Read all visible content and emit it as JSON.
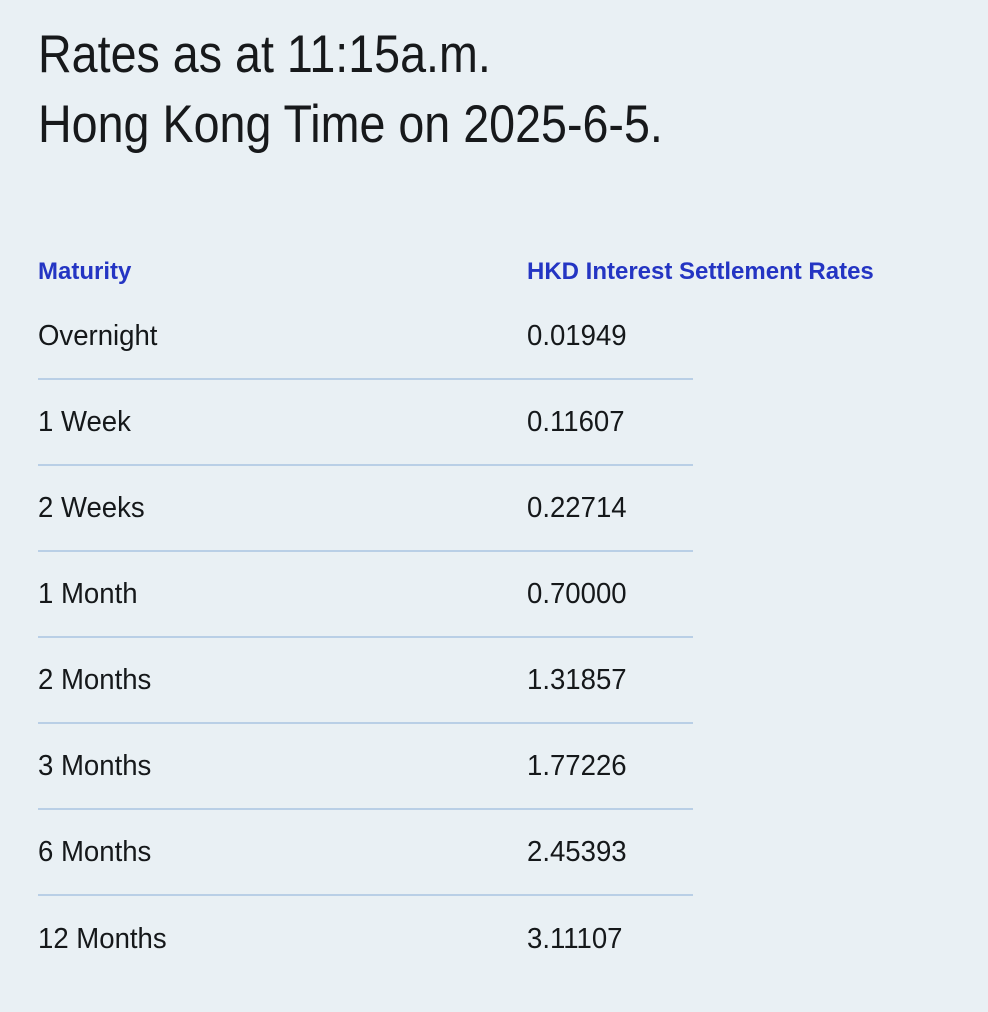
{
  "title": {
    "line1": "Rates as at 11:15a.m.",
    "line2": "Hong Kong Time on 2025-6-5."
  },
  "table": {
    "headers": {
      "maturity": "Maturity",
      "rate": "HKD Interest Settlement Rates"
    },
    "rows": [
      {
        "maturity": "Overnight",
        "rate": "0.01949"
      },
      {
        "maturity": "1 Week",
        "rate": "0.11607"
      },
      {
        "maturity": "2 Weeks",
        "rate": "0.22714"
      },
      {
        "maturity": "1 Month",
        "rate": "0.70000"
      },
      {
        "maturity": "2 Months",
        "rate": "1.31857"
      },
      {
        "maturity": "3 Months",
        "rate": "1.77226"
      },
      {
        "maturity": "6 Months",
        "rate": "2.45393"
      },
      {
        "maturity": "12 Months",
        "rate": "3.11107"
      }
    ]
  },
  "colors": {
    "background": "#e9f0f4",
    "header_text": "#2435c3",
    "body_text": "#15181a",
    "divider": "#b9cfe6"
  }
}
